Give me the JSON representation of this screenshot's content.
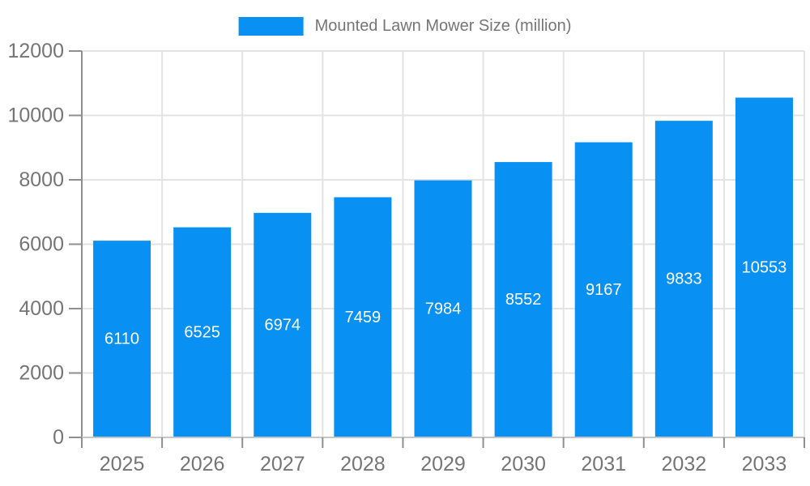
{
  "legend": {
    "position": "top"
  },
  "chart_data": {
    "type": "bar",
    "title": "",
    "categories": [
      "2025",
      "2026",
      "2027",
      "2028",
      "2029",
      "2030",
      "2031",
      "2032",
      "2033"
    ],
    "series": [
      {
        "name": "Mounted Lawn Mower Size (million)",
        "values": [
          6110,
          6525,
          6974,
          7459,
          7984,
          8552,
          9167,
          9833,
          10553
        ]
      }
    ],
    "xlabel": "",
    "ylabel": "",
    "ylim": [
      0,
      12000
    ],
    "ytick_step": 2000,
    "yticks": [
      0,
      2000,
      4000,
      6000,
      8000,
      10000,
      12000
    ],
    "grid": true,
    "legend_position": "top",
    "value_labels": "inside-center",
    "colors": {
      "bar": "#0890F2",
      "axis_text": "#757575",
      "value_label": "#ffffff",
      "grid_line": "#e3e3e3",
      "y_axis_line": "#8f8f8f",
      "x_axis_line": "#c6c6c6",
      "tick": "#8f8f8f",
      "background": "#ffffff"
    }
  }
}
